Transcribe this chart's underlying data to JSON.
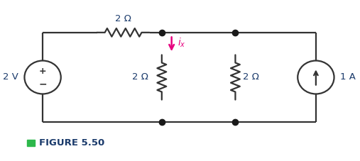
{
  "fig_width": 5.07,
  "fig_height": 2.27,
  "dpi": 100,
  "bg_color": "#ffffff",
  "line_color": "#333333",
  "line_width": 1.6,
  "resistor_color": "#333333",
  "dot_color": "#1a1a1a",
  "dot_size": 6,
  "label_color": "#1a3a6b",
  "figure_label": "FIGURE 5.50",
  "figure_label_color": "#1a3a6b",
  "figure_square_color": "#2db84b",
  "vsource_label": "2 V",
  "isource_label": "1 A",
  "top_resistor_label": "2 Ω",
  "left_resistor_label": "2 Ω",
  "mid_resistor_label": "2 Ω",
  "ix_arrow_color": "#e6007e",
  "ix_label_color": "#e6007e",
  "xlim": [
    0,
    10
  ],
  "ylim": [
    0,
    5
  ]
}
